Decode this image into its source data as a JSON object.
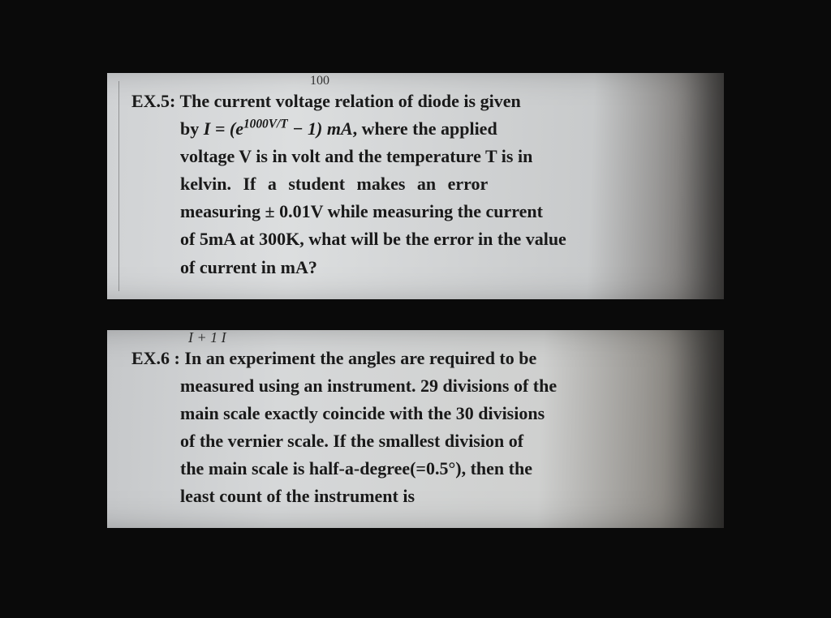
{
  "block1": {
    "fragment_top": "100",
    "label": "EX.5:",
    "line1": "The current voltage relation of diode is given",
    "line2_pre": "by  ",
    "formula_I": "I",
    "formula_eq": " = ",
    "formula_open": "(",
    "formula_e": "e",
    "formula_exp": "1000V/T",
    "formula_rest": " − 1) mA",
    "line2_post": ", where the applied",
    "line3": "voltage V is in volt and the temperature T is in",
    "line4": "kelvin. If a student makes an error",
    "line5": "measuring ± 0.01V while measuring the current",
    "line6": "of 5mA at 300K, what will be the error in the value",
    "line7": "of current in mA?"
  },
  "block2": {
    "fragment_top": "I + 1        I",
    "label": "EX.6 :",
    "line1": "In an experiment the angles are required to be",
    "line2": "measured using an instrument. 29 divisions of the",
    "line3": "main scale exactly coincide with the 30 divisions",
    "line4": "of the vernier scale. If the smallest division of",
    "line5": "the main scale is half-a-degree(=0.5°), then the",
    "line6": "least count of the instrument is"
  },
  "colors": {
    "page_bg": "#0a0a0a",
    "paper_light": "#dcdedf",
    "paper_shadow": "#555350",
    "text": "#1a1a1a"
  }
}
